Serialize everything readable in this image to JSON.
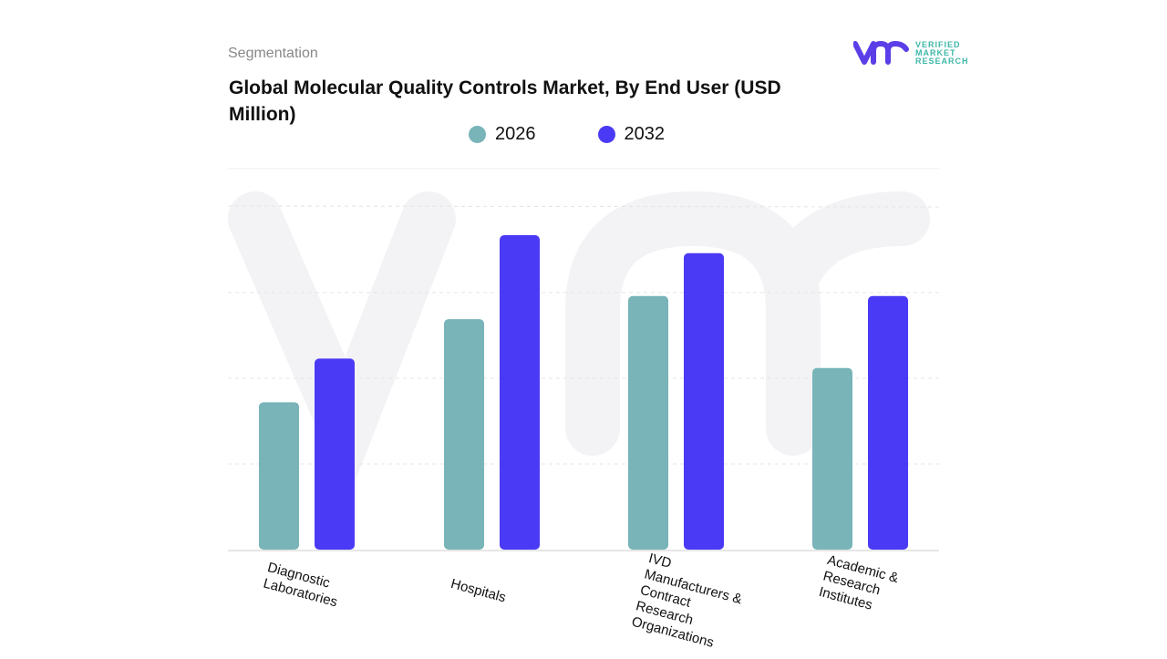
{
  "header": {
    "section": "Segmentation",
    "title": "Global Molecular Quality Controls Market, By End User (USD Million)"
  },
  "logo": {
    "text": [
      "VERIFIED",
      "MARKET",
      "RESEARCH"
    ],
    "mark": "vmr"
  },
  "colors": {
    "2026": "#78b4b8",
    "2032": "#4b3af5",
    "logo": "#5b3ee8",
    "logo_text": "#3fb8a8"
  },
  "chart_data": {
    "type": "bar",
    "title": "Global Molecular Quality Controls Market, By End User (USD Million)",
    "categories": [
      "Diagnostic Laboratories",
      "Hospitals",
      "IVD Manufacturers & Contract Research Organizations",
      "Academic & Research Institutes"
    ],
    "series": [
      {
        "name": "2026",
        "values": [
          1.72,
          2.69,
          2.96,
          2.12
        ]
      },
      {
        "name": "2032",
        "values": [
          2.23,
          3.67,
          3.46,
          2.96
        ]
      }
    ],
    "ylim": [
      0,
      4
    ],
    "grid": true,
    "legend": "top-center",
    "xlabel": "",
    "ylabel": ""
  }
}
